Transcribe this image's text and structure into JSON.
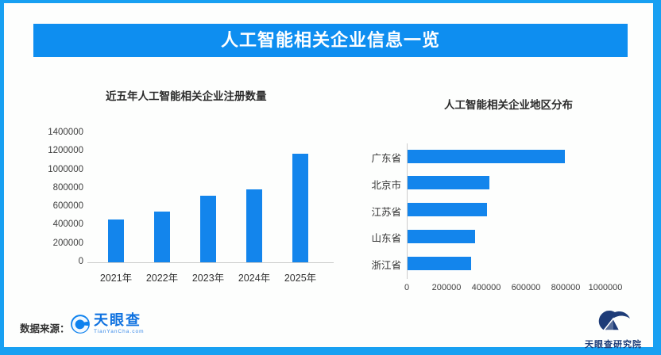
{
  "header": {
    "title": "人工智能相关企业信息一览"
  },
  "chart_data": [
    {
      "type": "bar",
      "orientation": "vertical",
      "title": "近五年人工智能相关企业注册数量",
      "categories": [
        "2021年",
        "2022年",
        "2023年",
        "2024年",
        "2025年"
      ],
      "values": [
        460000,
        550000,
        720000,
        790000,
        1180000
      ],
      "ylabel": "",
      "xlabel": "",
      "ylim": [
        0,
        1400000
      ],
      "yticks": [
        0,
        200000,
        400000,
        600000,
        800000,
        1000000,
        1200000,
        1400000
      ],
      "grid": false,
      "bar_color": "#1385ec"
    },
    {
      "type": "bar",
      "orientation": "horizontal",
      "title": "人工智能相关企业地区分布",
      "categories": [
        "广东省",
        "北京市",
        "江苏省",
        "山东省",
        "浙江省"
      ],
      "values": [
        790000,
        410000,
        400000,
        340000,
        320000
      ],
      "ylabel": "",
      "xlabel": "",
      "xlim": [
        0,
        1000000
      ],
      "xticks": [
        0,
        200000,
        400000,
        600000,
        800000,
        1000000
      ],
      "grid": false,
      "bar_color": "#1385ec"
    }
  ],
  "footer": {
    "source_label": "数据来源：",
    "tyc_name": "天眼查",
    "tyc_sub": "TianYanCha.com",
    "research_name": "天眼查研究院"
  },
  "colors": {
    "border": "#18a0f2",
    "banner": "#0e8ef0",
    "bar": "#1385ec",
    "axis": "#cccccc",
    "tyc_blue": "#0f72e0",
    "research_navy": "#1e3c78"
  }
}
